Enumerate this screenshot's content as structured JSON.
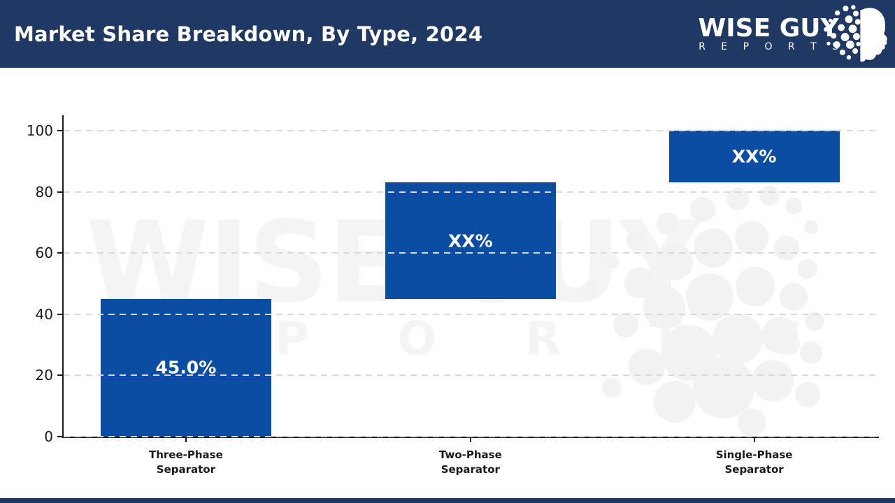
{
  "header": {
    "title": "Market Share Breakdown, By Type, 2024",
    "logo_line1": "WISE GUY",
    "logo_line2": "R E P O R T S",
    "bg_color": "#1f3864"
  },
  "watermark": {
    "line1": "WISE GUY",
    "line2": "P O R T S"
  },
  "chart_data": {
    "type": "bar",
    "subtype": "waterfall",
    "title": "Market Share Breakdown, By Type, 2024",
    "categories": [
      "Three-Phase Separator",
      "Two-Phase Separator",
      "Single-Phase Separator"
    ],
    "categories_display": [
      "Three-Phase\nSeparator",
      "Two-Phase\nSeparator",
      "Single-Phase\nSeparator"
    ],
    "segments": [
      {
        "category": "Three-Phase Separator",
        "start": 0,
        "end": 45,
        "label": "45.0%"
      },
      {
        "category": "Two-Phase Separator",
        "start": 45,
        "end": 83,
        "label": "XX%"
      },
      {
        "category": "Single-Phase Separator",
        "start": 83,
        "end": 100,
        "label": "XX%"
      }
    ],
    "yticks": [
      0,
      20,
      40,
      60,
      80,
      100
    ],
    "ylim": [
      0,
      105
    ],
    "xlabel": "",
    "ylabel": "",
    "grid": "horizontal-dashed",
    "legend": "none",
    "bar_color": "#0b4da2",
    "grid_color": "#d9d9d9",
    "axis_color": "#1a1a1a",
    "bar_label_color": "#ffffff"
  },
  "footer": {
    "bg_color": "#1f3864"
  }
}
